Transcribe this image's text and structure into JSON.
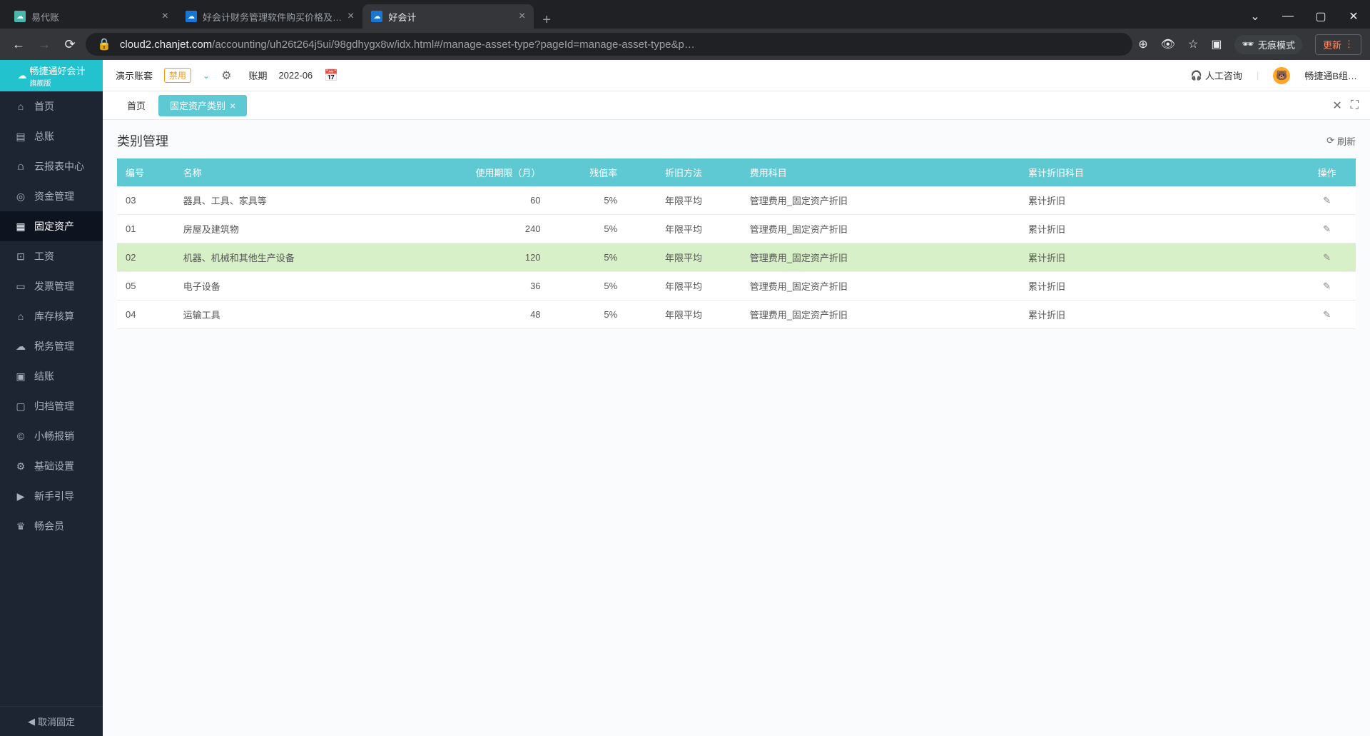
{
  "browser": {
    "tabs": [
      {
        "title": "易代账",
        "active": false,
        "icon_color": "#4db6ac"
      },
      {
        "title": "好会计财务管理软件购买价格及…",
        "active": false,
        "icon_color": "#1976d2"
      },
      {
        "title": "好会计",
        "active": true,
        "icon_color": "#1976d2"
      }
    ],
    "url_domain": "cloud2.chanjet.com",
    "url_path": "/accounting/uh26t264j5ui/98gdhygx8w/idx.html#/manage-asset-type?pageId=manage-asset-type&p…",
    "incognito_label": "无痕模式",
    "update_label": "更新"
  },
  "app": {
    "logo_text": "畅捷通好会计",
    "logo_sub": "旗舰版",
    "nav": [
      {
        "label": "首页",
        "icon": "⌂"
      },
      {
        "label": "总账",
        "icon": "▤"
      },
      {
        "label": "云报表中心",
        "icon": "⩍"
      },
      {
        "label": "资金管理",
        "icon": "◎"
      },
      {
        "label": "固定资产",
        "icon": "▦",
        "active": true
      },
      {
        "label": "工资",
        "icon": "⊡"
      },
      {
        "label": "发票管理",
        "icon": "▭"
      },
      {
        "label": "库存核算",
        "icon": "⌂"
      },
      {
        "label": "税务管理",
        "icon": "☁"
      },
      {
        "label": "结账",
        "icon": "▣"
      },
      {
        "label": "归档管理",
        "icon": "▢"
      },
      {
        "label": "小畅报销",
        "icon": "©"
      },
      {
        "label": "基础设置",
        "icon": "⚙"
      },
      {
        "label": "新手引导",
        "icon": "▶"
      },
      {
        "label": "畅会员",
        "icon": "♛"
      }
    ],
    "sidebar_footer": "取消固定",
    "topbar": {
      "account_name": "演示账套",
      "disable_tag": "禁用",
      "period_label": "账期",
      "period_value": "2022-06",
      "support_label": "人工咨询",
      "user_label": "畅捷通B组…"
    },
    "tabs": [
      {
        "label": "首页",
        "active": false
      },
      {
        "label": "固定资产类别",
        "active": true,
        "closable": true
      }
    ],
    "page_title": "类别管理",
    "refresh_label": "刷新",
    "table": {
      "columns": [
        "编号",
        "名称",
        "使用期限（月）",
        "残值率",
        "折旧方法",
        "费用科目",
        "累计折旧科目",
        "操作"
      ],
      "rows": [
        {
          "code": "03",
          "name": "器具、工具、家具等",
          "period": "60",
          "residual": "5%",
          "method": "年限平均",
          "expense": "管理费用_固定资产折旧",
          "accum": "累计折旧",
          "highlight": false
        },
        {
          "code": "01",
          "name": "房屋及建筑物",
          "period": "240",
          "residual": "5%",
          "method": "年限平均",
          "expense": "管理费用_固定资产折旧",
          "accum": "累计折旧",
          "highlight": false
        },
        {
          "code": "02",
          "name": "机器、机械和其他生产设备",
          "period": "120",
          "residual": "5%",
          "method": "年限平均",
          "expense": "管理费用_固定资产折旧",
          "accum": "累计折旧",
          "highlight": true
        },
        {
          "code": "05",
          "name": "电子设备",
          "period": "36",
          "residual": "5%",
          "method": "年限平均",
          "expense": "管理费用_固定资产折旧",
          "accum": "累计折旧",
          "highlight": false
        },
        {
          "code": "04",
          "name": "运输工具",
          "period": "48",
          "residual": "5%",
          "method": "年限平均",
          "expense": "管理费用_固定资产折旧",
          "accum": "累计折旧",
          "highlight": false
        }
      ]
    }
  },
  "colors": {
    "sidebar_bg": "#1e2532",
    "accent": "#22c3cf",
    "table_header": "#5ec9d3",
    "highlight_row": "#d7f0c8"
  }
}
